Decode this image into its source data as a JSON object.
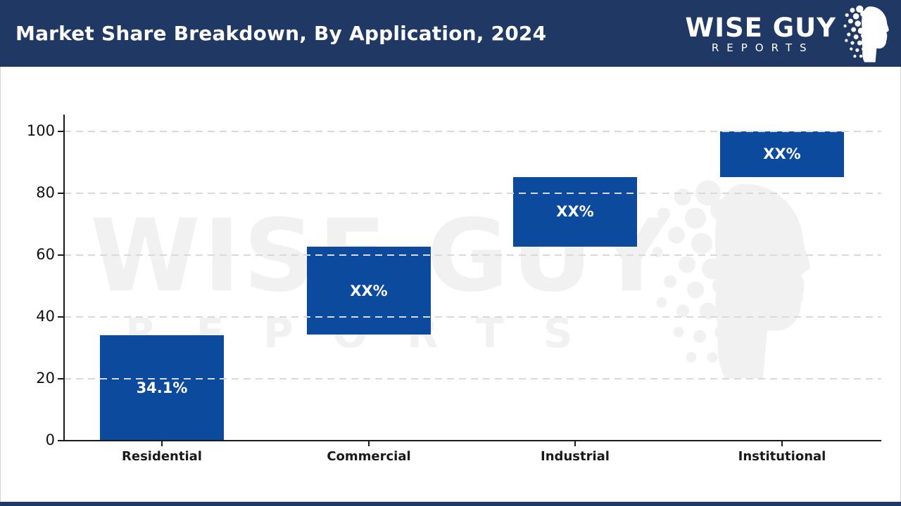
{
  "header": {
    "title": "Market Share Breakdown, By Application, 2024",
    "background_color": "#1f3864"
  },
  "logo": {
    "line1": "WISE GUY",
    "line2": "REPORTS",
    "face_icon": "dotted-head-profile",
    "color": "#ffffff"
  },
  "watermark": {
    "line1": "WISE GUY",
    "line2": "REPORTS",
    "face_icon": "dotted-head-profile",
    "color": "#f1f1f1"
  },
  "chart_data": {
    "type": "bar",
    "subtype": "floating-waterfall",
    "title": "Market Share Breakdown, By Application, 2024",
    "categories": [
      "Residential",
      "Commercial",
      "Industrial",
      "Institutional"
    ],
    "series": [
      {
        "name": "Residential",
        "start": 0,
        "end": 34.1,
        "label": "34.1%"
      },
      {
        "name": "Commercial",
        "start": 34.3,
        "end": 62.7,
        "label": "XX%"
      },
      {
        "name": "Industrial",
        "start": 62.8,
        "end": 85.3,
        "label": "XX%"
      },
      {
        "name": "Institutional",
        "start": 85.3,
        "end": 100,
        "label": "XX%"
      }
    ],
    "xlabel": "",
    "ylabel": "",
    "ylim": [
      0,
      100
    ],
    "yticks": [
      0,
      20,
      40,
      60,
      80,
      100
    ],
    "grid": "horizontal-dashed",
    "legend": "none",
    "bar_color": "#0c4a9e",
    "bar_label_color": "#ffffff",
    "axis_color": "#1a1a1a",
    "grid_color": "#d9d9d9"
  }
}
